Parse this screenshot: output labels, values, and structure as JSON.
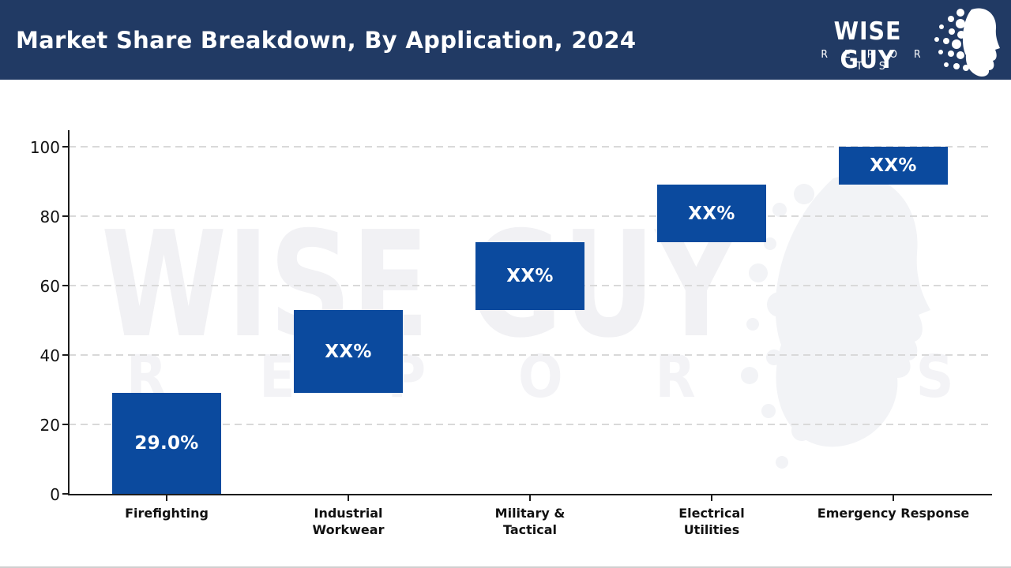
{
  "header": {
    "title": "Market Share Breakdown, By Application, 2024",
    "logo": {
      "line1": "WISE GUY",
      "line2": "R E P O R T S"
    }
  },
  "watermark": {
    "line1": "WISE GUY",
    "line2": "R E P O R T S"
  },
  "chart_data": {
    "type": "bar",
    "subtype": "waterfall-floating-bars",
    "title": "Market Share Breakdown, By Application, 2024",
    "categories": [
      "Firefighting",
      "Industrial Workwear",
      "Military & Tactical",
      "Electrical Utilities",
      "Emergency Response"
    ],
    "category_lines": [
      [
        "Firefighting"
      ],
      [
        "Industrial",
        "Workwear"
      ],
      [
        "Military &",
        "Tactical"
      ],
      [
        "Electrical",
        "Utilities"
      ],
      [
        "Emergency Response"
      ]
    ],
    "segments": [
      {
        "category": "Firefighting",
        "start": 0,
        "end": 29,
        "label": "29.0%"
      },
      {
        "category": "Industrial Workwear",
        "start": 29,
        "end": 53,
        "label": "XX%"
      },
      {
        "category": "Military & Tactical",
        "start": 53,
        "end": 72.5,
        "label": "XX%"
      },
      {
        "category": "Electrical Utilities",
        "start": 72.5,
        "end": 89,
        "label": "XX%"
      },
      {
        "category": "Emergency Response",
        "start": 89,
        "end": 100,
        "label": "XX%"
      }
    ],
    "xlabel": "",
    "ylabel": "",
    "ylim": [
      0,
      100
    ],
    "yticks": [
      0,
      20,
      40,
      60,
      80,
      100
    ],
    "grid": "horizontal dashed",
    "legend_position": "none",
    "bar_color": "#0b4a9e",
    "bar_label_color": "#ffffff"
  },
  "colors": {
    "header_bg": "#213a64",
    "bar": "#0b4a9e",
    "axis": "#1c1c1c",
    "grid": "#d9d9d9",
    "watermark": "#f1f1f4"
  }
}
